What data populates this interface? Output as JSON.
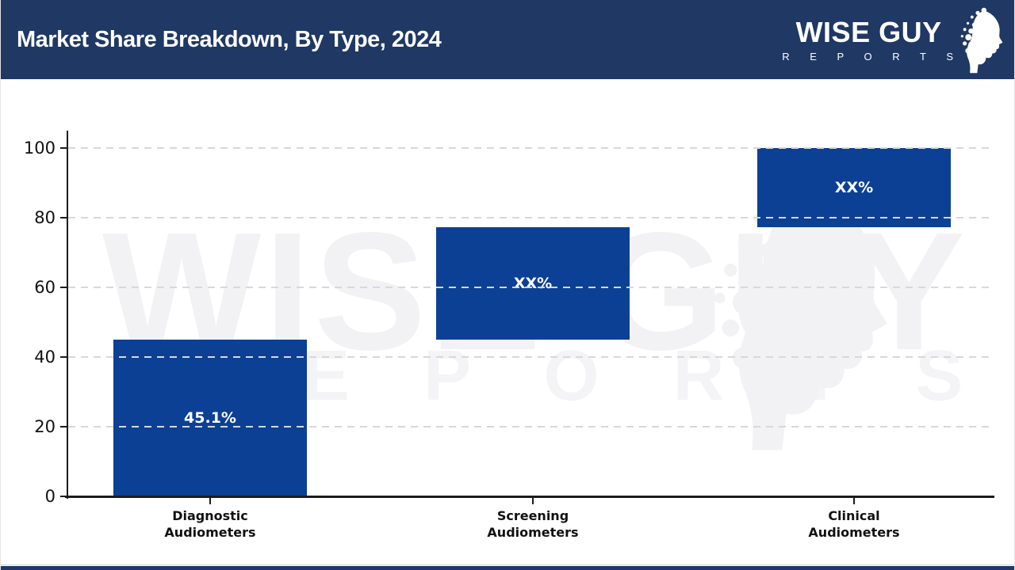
{
  "header": {
    "title": "Market Share Breakdown, By Type, 2024",
    "logo": {
      "line1": "WISE GUY",
      "line2": "R E P O R T S"
    }
  },
  "watermark": {
    "line1": "WISE GUY",
    "line2": "R E P O R T S"
  },
  "colors": {
    "header_bg": "#1f3864",
    "bar": "#0c4094",
    "bar_label": "#ffffff",
    "grid": "#d8d8d8",
    "axis": "#1c1c1c",
    "watermark": "#f2f2f4",
    "title_text": "#ffffff",
    "footer_bar": "#1f3864"
  },
  "chart_data": {
    "type": "bar",
    "subtype": "waterfall",
    "title": "Market Share Breakdown, By Type, 2024",
    "categories": [
      [
        "Diagnostic",
        "Audiometers"
      ],
      [
        "Screening",
        "Audiometers"
      ],
      [
        "Clinical",
        "Audiometers"
      ]
    ],
    "segments": [
      {
        "category": "Diagnostic Audiometers",
        "label": "45.1%",
        "start": 0,
        "end": 45.1
      },
      {
        "category": "Screening Audiometers",
        "label": "XX%",
        "start": 45.1,
        "end": 77.3
      },
      {
        "category": "Clinical Audiometers",
        "label": "XX%",
        "start": 77.3,
        "end": 100
      }
    ],
    "yticks": [
      0,
      20,
      40,
      60,
      80,
      100
    ],
    "ylim": [
      0,
      105
    ],
    "xlabel": "",
    "ylabel": "",
    "grid": "horizontal-dashed-over-bars",
    "legend": "none",
    "bar_color": "#0c4094",
    "label_color": "#ffffff"
  }
}
